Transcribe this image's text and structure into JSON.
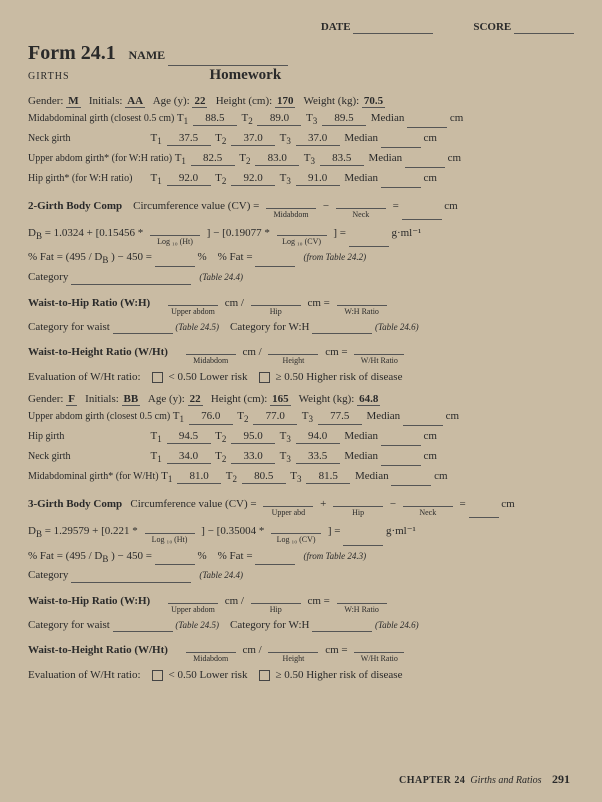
{
  "top": {
    "date_label": "DATE",
    "score_label": "SCORE"
  },
  "header": {
    "form": "Form 24.1",
    "name_label": "NAME",
    "girths": "GIRTHS",
    "homework": "Homework"
  },
  "p1": {
    "gender_label": "Gender:",
    "gender": "M",
    "initials_label": "Initials:",
    "initials": "AA",
    "age_label": "Age (y):",
    "age": "22",
    "height_label": "Height (cm):",
    "height": "170",
    "weight_label": "Weight (kg):",
    "weight": "70.5",
    "r1_label": "Midabdominal girth (closest 0.5 cm)",
    "r1_t1": "88.5",
    "r1_t2": "89.0",
    "r1_t3": "89.5",
    "r1_med": "Median",
    "r2_label": "Neck girth",
    "r2_t1": "37.5",
    "r2_t2": "37.0",
    "r2_t3": "37.0",
    "r2_med": "Median",
    "r3_label": "Upper abdom girth* (for W:H ratio)",
    "r3_t1": "82.5",
    "r3_t2": "83.0",
    "r3_t3": "83.5",
    "r3_med": "Median",
    "r4_label": "Hip girth* (for W:H ratio)",
    "r4_t1": "92.0",
    "r4_t2": "92.0",
    "r4_t3": "91.0",
    "r4_med": "Median",
    "cm": "cm",
    "girth2": "2-Girth Body Comp",
    "cv": "Circumference value (CV) =",
    "midab": "Midabdom",
    "neck": "Neck",
    "db": "D",
    "db_eq": "= 1.0324 + [0.15456 *",
    "db_mid": "] − [0.19077 *",
    "db_end": "] =",
    "unit": "g·ml⁻¹",
    "logh": "Log ₁₀ (Ht)",
    "logc": "Log ₁₀ (CV)",
    "fat_eq": "% Fat = (495 / D",
    "fat_mid": ") − 450 =",
    "pct": "%",
    "pctfat": "% Fat =",
    "from_tbl": "(from Table 24.2)",
    "category": "Category",
    "tbl244": "(Table 24.4)",
    "whr": "Waist-to-Hip Ratio (W:H)",
    "cm_slash": "cm /",
    "cm_eq": "cm =",
    "upabd": "Upper abdom",
    "hip": "Hip",
    "whratio": "W:H Ratio",
    "cat_waist": "Category for waist",
    "tbl245": "(Table 24.5)",
    "catwh": "Category for W:H",
    "tbl246": "(Table 24.6)",
    "wht": "Waist-to-Height Ratio (W/Ht)",
    "height_c": "Height",
    "whtratio": "W/Ht Ratio",
    "eval": "Evaluation of W/Ht ratio:",
    "lower": "< 0.50 Lower risk",
    "higher": "≥ 0.50 Higher risk of disease"
  },
  "p2": {
    "gender_label": "Gender:",
    "gender": "F",
    "initials_label": "Initials:",
    "initials": "BB",
    "age_label": "Age (y):",
    "age": "22",
    "height_label": "Height (cm):",
    "height": "165",
    "weight_label": "Weight (kg):",
    "weight": "64.8",
    "r1_label": "Upper abdom girth (closest 0.5 cm)",
    "r1_t1": "76.0",
    "r1_t2": "77.0",
    "r1_t3": "77.5",
    "r1_med": "Median",
    "r2_label": "Hip girth",
    "r2_t1": "94.5",
    "r2_t2": "95.0",
    "r2_t3": "94.0",
    "r2_med": "Median",
    "r3_label": "Neck girth",
    "r3_t1": "34.0",
    "r3_t2": "33.0",
    "r3_t3": "33.5",
    "r3_med": "Median",
    "r4_label": "Midabdominal girth* (for W/Ht)",
    "r4_t1": "81.0",
    "r4_t2": "80.5",
    "r4_t3": "81.5",
    "r4_med": "Median",
    "cm": "cm",
    "girth3": "3-Girth Body Comp",
    "cv": "Circumference value (CV) =",
    "plus": "+",
    "minus": "−",
    "eq": "=",
    "upabd": "Upper abd",
    "hip": "Hip",
    "neck": "Neck",
    "db": "D",
    "db_eq": "= 1.29579 + [0.221 *",
    "db_mid": "] − [0.35004 *",
    "db_end": "] =",
    "unit": "g·ml⁻¹",
    "logh": "Log ₁₀ (Ht)",
    "logc": "Log ₁₀ (CV)",
    "fat_eq": "% Fat = (495 / D",
    "fat_mid": ") − 450 =",
    "pct": "%",
    "pctfat": "% Fat =",
    "from_tbl": "(from Table 24.3)",
    "category": "Category",
    "tbl244": "(Table 24.4)",
    "whr": "Waist-to-Hip Ratio (W:H)",
    "cm_slash": "cm /",
    "cm_eq": "cm =",
    "upabd2": "Upper abdom",
    "whratio": "W:H Ratio",
    "cat_waist": "Category for waist",
    "tbl245": "(Table 24.5)",
    "catwh": "Category for W:H",
    "tbl246": "(Table 24.6)",
    "wht": "Waist-to-Height Ratio (W/Ht)",
    "height_c": "Height",
    "whtratio": "W/Ht Ratio",
    "midab": "Midabdom",
    "eval": "Evaluation of W/Ht ratio:",
    "lower": "< 0.50 Lower risk",
    "higher": "≥ 0.50 Higher risk of disease"
  },
  "footer": {
    "chapter": "CHAPTER 24",
    "title": "Girths and Ratios",
    "page": "291"
  }
}
